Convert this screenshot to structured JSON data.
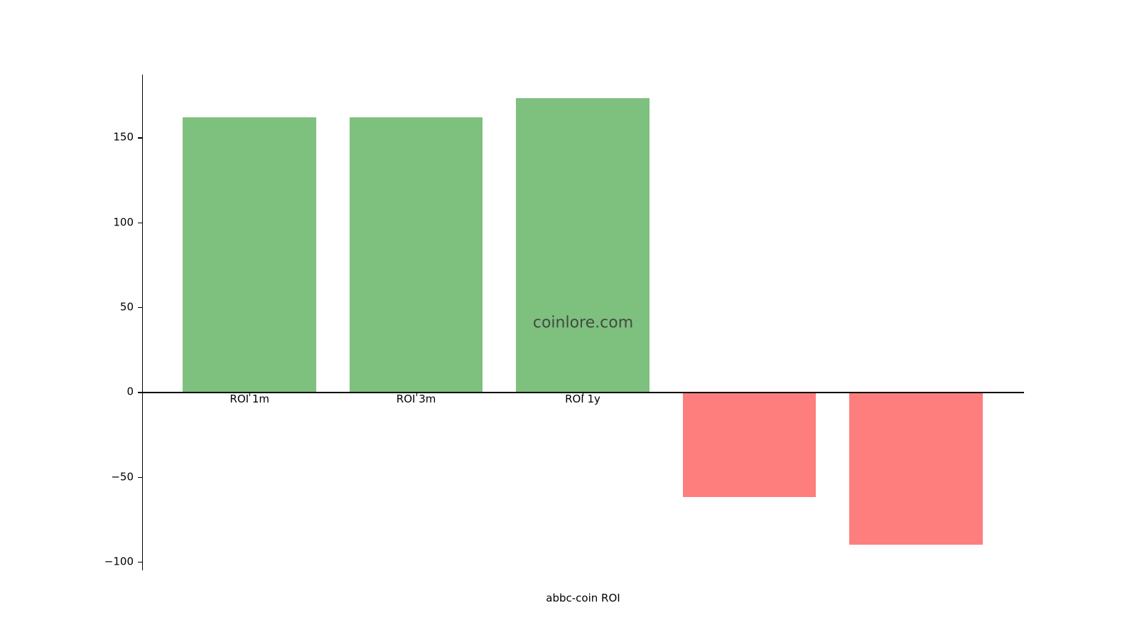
{
  "watermark": "coinlore.com",
  "chart_data": {
    "type": "bar",
    "title": "abbc-coin ROI",
    "categories": [
      "ROI 1m",
      "ROI 3m",
      "ROI 1y",
      "",
      ""
    ],
    "values": [
      162,
      162,
      173,
      -62,
      -90
    ],
    "bar_colors": [
      "#7ec07e",
      "#7ec07e",
      "#7ec07e",
      "#fe7e7e",
      "#fe7e7e"
    ],
    "positive_color": "#7ec07e",
    "negative_color": "#fe7e7e",
    "yticks": [
      150,
      100,
      50,
      0,
      -50,
      -100
    ],
    "ytick_labels": [
      "150",
      "100",
      "50",
      "0",
      "−50",
      "−100"
    ],
    "ylim": [
      -105,
      187
    ],
    "xlabel": "",
    "ylabel": "",
    "grid": false,
    "legend": "none"
  }
}
